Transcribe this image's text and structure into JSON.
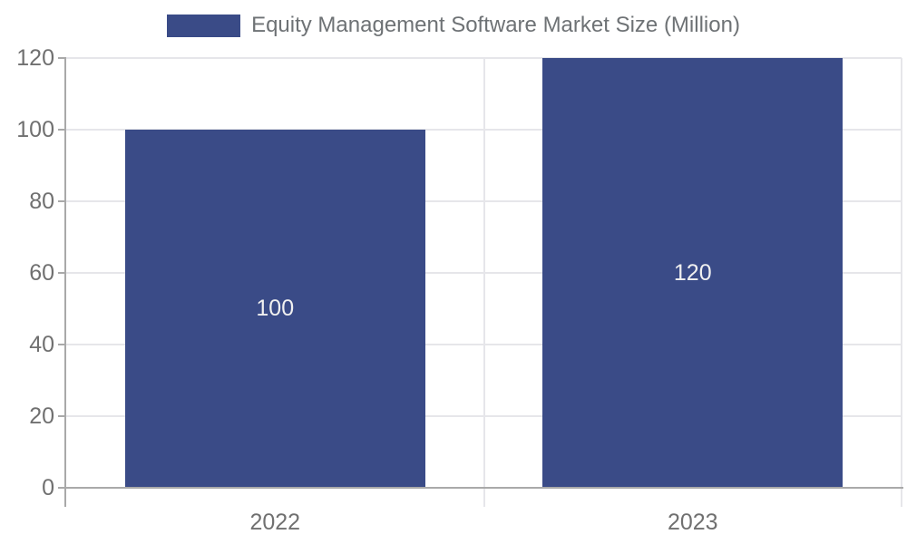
{
  "legend": {
    "label": "Equity Management Software Market Size (Million)"
  },
  "colors": {
    "bar": "#3a4b87",
    "grid_line": "#e6e6ea",
    "axis_line": "#a9a9a9",
    "axis_label": "#707070",
    "legend_text": "#6e7275",
    "value_label": "#f0f0f0",
    "background": "#ffffff"
  },
  "chart_data": {
    "type": "bar",
    "title": "Equity Management Software Market Size (Million)",
    "categories": [
      "2022",
      "2023"
    ],
    "values": [
      100,
      120
    ],
    "xlabel": "",
    "ylabel": "",
    "ylim": [
      0,
      120
    ],
    "y_ticks": [
      0,
      20,
      40,
      60,
      80,
      100,
      120
    ],
    "grid": true,
    "legend_position": "top",
    "value_label_position": "inside-center"
  }
}
